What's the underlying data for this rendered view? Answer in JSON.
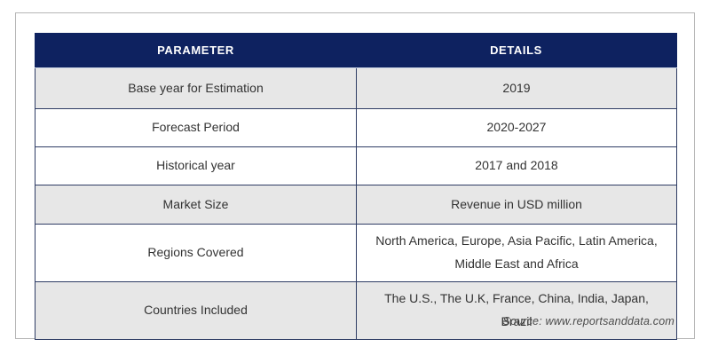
{
  "table": {
    "header": {
      "parameter": "PARAMETER",
      "details": "DETAILS"
    },
    "rows": [
      {
        "parameter": "Base year for Estimation",
        "details": "2019"
      },
      {
        "parameter": "Forecast Period",
        "details": "2020-2027"
      },
      {
        "parameter": "Historical year",
        "details": "2017 and 2018"
      },
      {
        "parameter": "Market Size",
        "details": "Revenue in USD million"
      },
      {
        "parameter": "Regions Covered",
        "details": "North America, Europe, Asia Pacific, Latin America, Middle East and Africa"
      },
      {
        "parameter": "Countries Included",
        "details": "The U.S., The  U.K, France, China, India, Japan, Brazil"
      }
    ]
  },
  "footer": {
    "source": "Source: www.reportsanddata.com"
  },
  "colors": {
    "header_bg": "#0e2260",
    "row_alt_bg": "#e7e7e7",
    "table_border": "#2e3c64",
    "frame_border": "#b5b5b5"
  }
}
